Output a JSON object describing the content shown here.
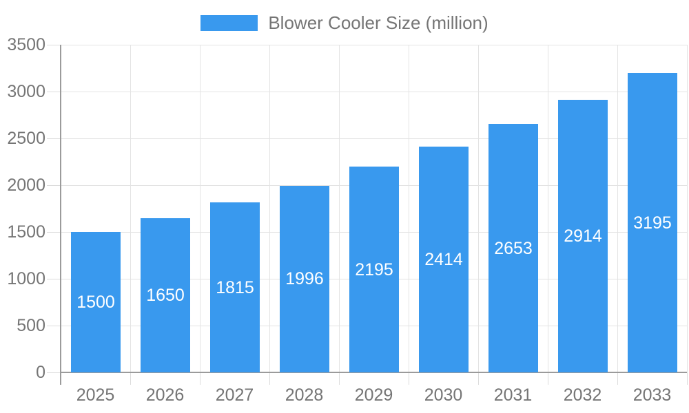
{
  "chart_data": {
    "type": "bar",
    "title": "Blower Cooler Size (million)",
    "legend": {
      "position": "top",
      "label": "Blower Cooler Size (million)"
    },
    "categories": [
      "2025",
      "2026",
      "2027",
      "2028",
      "2029",
      "2030",
      "2031",
      "2032",
      "2033"
    ],
    "series": [
      {
        "name": "Blower Cooler Size (million)",
        "values": [
          1500,
          1650,
          1815,
          1996,
          2195,
          2414,
          2653,
          2914,
          3195
        ]
      }
    ],
    "xlabel": "",
    "ylabel": "",
    "ylim": [
      0,
      3500
    ],
    "ytick_step": 500,
    "yticks": [
      0,
      500,
      1000,
      1500,
      2000,
      2500,
      3000,
      3500
    ],
    "grid": true,
    "bar_labels": {
      "show": true,
      "position": "center-of-bar"
    }
  },
  "colors": {
    "bar": "#3999ee",
    "bar_label_text": "#ffffff",
    "axis_text": "#757575",
    "legend_text": "#757575",
    "gridline": "#e3e3e3",
    "axis_line": "#9b9b9b",
    "background": "#ffffff"
  }
}
